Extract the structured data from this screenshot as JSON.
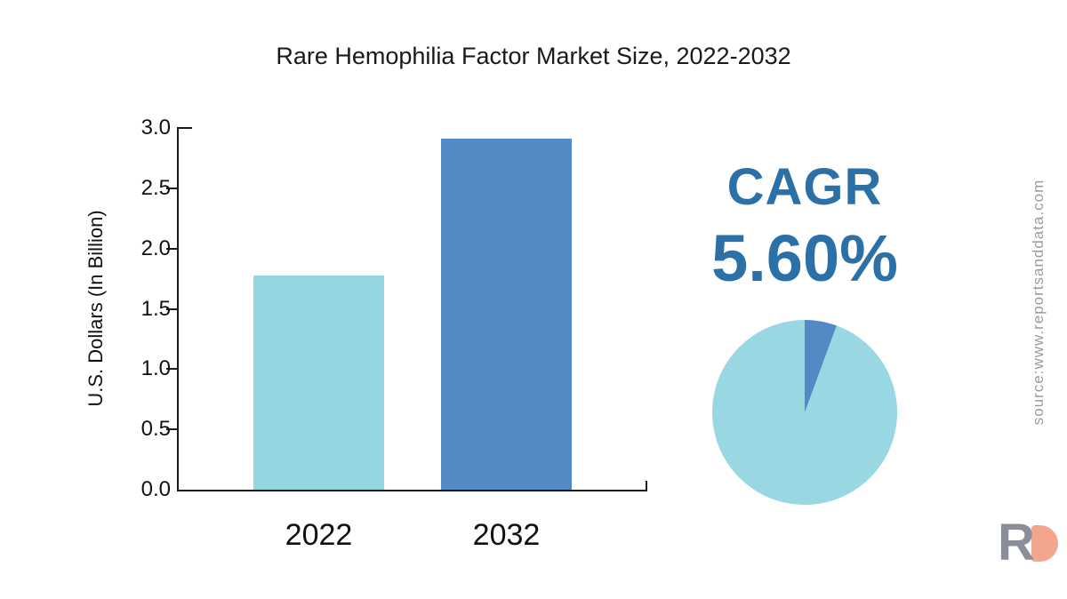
{
  "title": "Rare Hemophilia Factor Market Size, 2022-2032",
  "chart_data": [
    {
      "type": "bar",
      "title": "Rare Hemophilia Factor Market Size, 2022-2032",
      "categories": [
        "2022",
        "2032"
      ],
      "values": [
        1.78,
        2.91
      ],
      "xlabel": "",
      "ylabel": "U.S. Dollars (In Billion)",
      "ylim": [
        0,
        3.0
      ],
      "yticks": [
        "0.0",
        "0.5",
        "1.0",
        "1.5",
        "2.0",
        "2.5",
        "3.0"
      ],
      "colors": [
        "#96d6e2",
        "#5389c5"
      ],
      "grid": false,
      "legend": "none"
    },
    {
      "type": "pie",
      "values": [
        5.6,
        94.4
      ],
      "colors": [
        "#5389c5",
        "#99d7e3"
      ],
      "start_angle": "top",
      "direction": "clockwise"
    }
  ],
  "annotations": {
    "cagr_label": "CAGR",
    "cagr_value": "5.60%",
    "cagr_color": "#2c70a8"
  },
  "source": {
    "text": "source:www.reportsanddata.com",
    "color": "#9b9b9b"
  },
  "logo": {
    "letter_r": "R",
    "r_color": "#8a8e99",
    "d_color": "#f2a78c"
  }
}
